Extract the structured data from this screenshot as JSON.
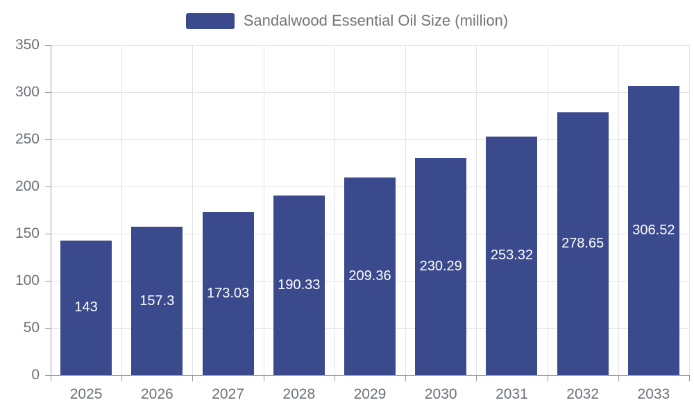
{
  "colors": {
    "bar": "#3B4A8C",
    "grid": "#E3E3E3",
    "axis_line": "#999999",
    "axis_text": "#6E7079",
    "legend_text": "#757575",
    "bar_label": "#FFFFFF",
    "background": "#FFFFFF"
  },
  "chart_data": {
    "type": "bar",
    "title": "Sandalwood Essential Oil Size (million)",
    "legend": [
      "Sandalwood Essential Oil Size (million)"
    ],
    "legend_position": "top-center",
    "categories": [
      "2025",
      "2026",
      "2027",
      "2028",
      "2029",
      "2030",
      "2031",
      "2032",
      "2033"
    ],
    "values": [
      143,
      157.3,
      173.03,
      190.33,
      209.36,
      230.29,
      253.32,
      278.65,
      306.52
    ],
    "value_labels": [
      "143",
      "157.3",
      "173.03",
      "190.33",
      "209.36",
      "230.29",
      "253.32",
      "278.65",
      "306.52"
    ],
    "xlabel": "",
    "ylabel": "",
    "ylim": [
      0,
      350
    ],
    "ytick_step": 50,
    "yticks": [
      0,
      50,
      100,
      150,
      200,
      250,
      300,
      350
    ],
    "grid": true,
    "bar_label_position": "inside-center"
  }
}
